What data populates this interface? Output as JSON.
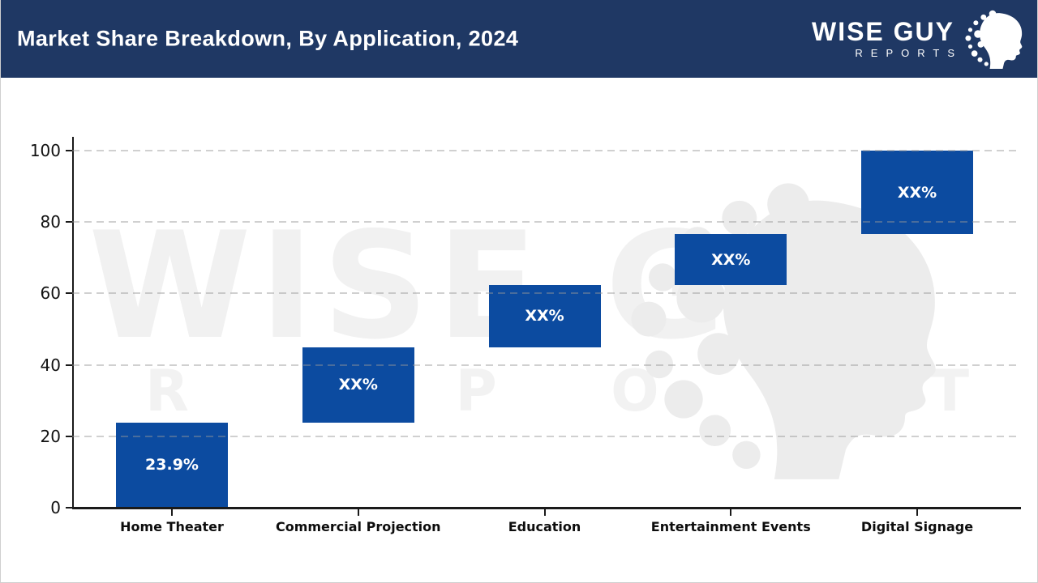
{
  "header": {
    "title": "Market Share Breakdown, By Application, 2024",
    "logo": {
      "line1": "WISE GUY",
      "line2": "REPORTS",
      "face_icon": "dotted-head-profile-icon"
    }
  },
  "watermark": {
    "line1": "WISE GU",
    "line2": "R E P O R T S",
    "face_icon": "dotted-head-profile-watermark"
  },
  "colors": {
    "header_bg": "#1f3864",
    "bar_fill": "#0c4ba0",
    "bar_label_text": "#ffffff",
    "axis": "#1a1a1a",
    "gridline": "#c9c9c9",
    "watermark": "#f1f1f1"
  },
  "chart_data": {
    "type": "bar",
    "subtype": "waterfall",
    "title": "Market Share Breakdown, By Application, 2024",
    "xlabel": "",
    "ylabel": "",
    "ylim": [
      0,
      100
    ],
    "yticks": [
      0,
      20,
      40,
      60,
      80,
      100
    ],
    "grid": "dashed-horizontal",
    "legend": "none",
    "categories": [
      "Home Theater",
      "Commercial Projection",
      "Education",
      "Entertainment Events",
      "Digital Signage"
    ],
    "segments": [
      {
        "category": "Home Theater",
        "start": 0,
        "end": 23.9,
        "label": "23.9%"
      },
      {
        "category": "Commercial Projection",
        "start": 23.9,
        "end": 45.0,
        "label": "XX%"
      },
      {
        "category": "Education",
        "start": 45.0,
        "end": 62.3,
        "label": "XX%"
      },
      {
        "category": "Entertainment Events",
        "start": 62.3,
        "end": 76.6,
        "label": "XX%"
      },
      {
        "category": "Digital Signage",
        "start": 76.6,
        "end": 100.0,
        "label": "XX%"
      }
    ]
  }
}
